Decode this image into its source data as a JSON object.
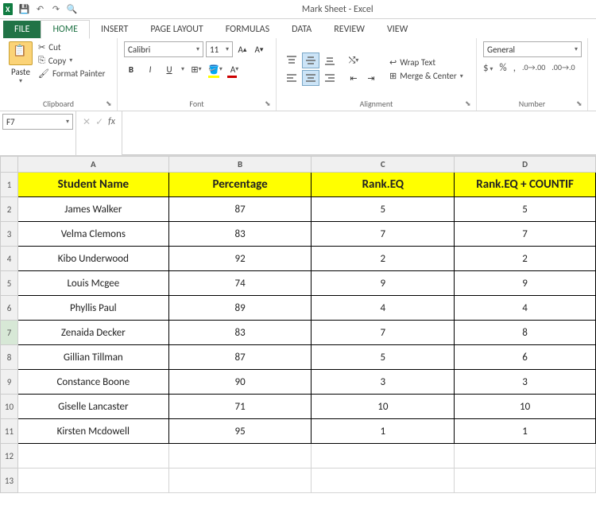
{
  "window": {
    "title": "Mark Sheet - Excel"
  },
  "tabs": {
    "file": "FILE",
    "home": "HOME",
    "insert": "INSERT",
    "pagelayout": "PAGE LAYOUT",
    "formulas": "FORMULAS",
    "data": "DATA",
    "review": "REVIEW",
    "view": "VIEW"
  },
  "clipboard": {
    "paste": "Paste",
    "cut": "Cut",
    "copy": "Copy",
    "formatpainter": "Format Painter",
    "label": "Clipboard"
  },
  "font": {
    "name": "Calibri",
    "size": "11",
    "label": "Font"
  },
  "alignment": {
    "wrap": "Wrap Text",
    "merge": "Merge & Center",
    "label": "Alignment"
  },
  "number": {
    "format": "General",
    "label": "Number"
  },
  "namebox": "F7",
  "columns": [
    "A",
    "B",
    "C",
    "D"
  ],
  "headers": {
    "A": "Student Name",
    "B": "Percentage",
    "C": "Rank.EQ",
    "D": "Rank.EQ + COUNTIF"
  },
  "rows": [
    {
      "r": "1"
    },
    {
      "r": "2",
      "A": "James Walker",
      "B": "87",
      "C": "5",
      "D": "5"
    },
    {
      "r": "3",
      "A": "Velma Clemons",
      "B": "83",
      "C": "7",
      "D": "7"
    },
    {
      "r": "4",
      "A": "Kibo Underwood",
      "B": "92",
      "C": "2",
      "D": "2"
    },
    {
      "r": "5",
      "A": "Louis Mcgee",
      "B": "74",
      "C": "9",
      "D": "9"
    },
    {
      "r": "6",
      "A": "Phyllis Paul",
      "B": "89",
      "C": "4",
      "D": "4"
    },
    {
      "r": "7",
      "A": "Zenaida Decker",
      "B": "83",
      "C": "7",
      "D": "8"
    },
    {
      "r": "8",
      "A": "Gillian Tillman",
      "B": "87",
      "C": "5",
      "D": "6"
    },
    {
      "r": "9",
      "A": "Constance Boone",
      "B": "90",
      "C": "3",
      "D": "3"
    },
    {
      "r": "10",
      "A": "Giselle Lancaster",
      "B": "71",
      "C": "10",
      "D": "10"
    },
    {
      "r": "11",
      "A": "Kirsten Mcdowell",
      "B": "95",
      "C": "1",
      "D": "1"
    },
    {
      "r": "12"
    },
    {
      "r": "13"
    }
  ],
  "col_widths": {
    "A": 190,
    "B": 180,
    "C": 180,
    "D": 178
  },
  "active_cell": "F7"
}
